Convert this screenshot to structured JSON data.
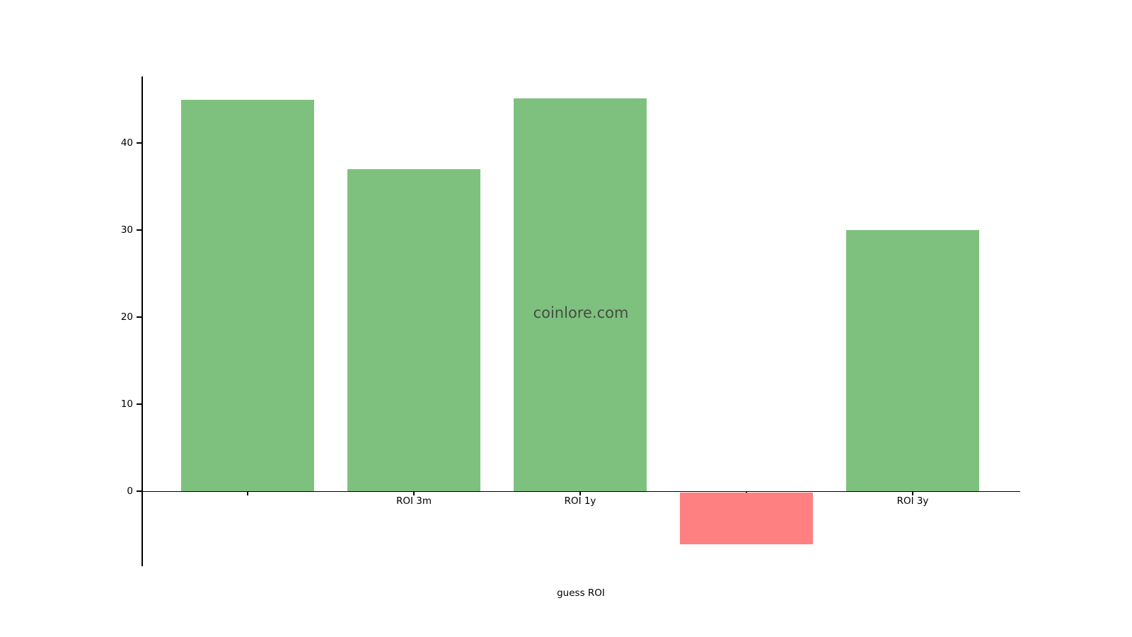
{
  "page": {
    "background": "#ffffff"
  },
  "watermark": {
    "text": "coinlore.com",
    "color": "#3d3d3d"
  },
  "chart_data": {
    "type": "bar",
    "categories": [
      "",
      "ROI 3m",
      "ROI 1y",
      "",
      "ROI 3y"
    ],
    "values": [
      45,
      37,
      45.1,
      -6,
      30
    ],
    "title": "",
    "xlabel": "guess ROI",
    "ylabel": "",
    "yticks": [
      0,
      10,
      20,
      30,
      40
    ],
    "ylim": [
      -8.5,
      47.7
    ],
    "grid": false,
    "legend": false,
    "positive_color": "#7ec17e",
    "negative_color": "#ff8080",
    "axis_color": "#000000",
    "bar_width_fraction": 0.8
  }
}
